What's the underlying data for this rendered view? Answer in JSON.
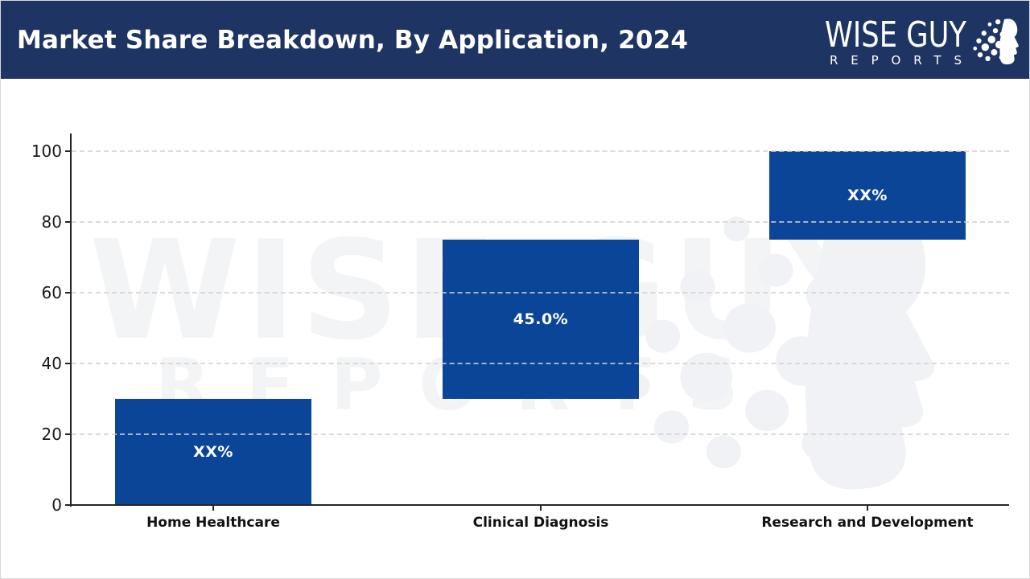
{
  "header": {
    "title": "Market Share Breakdown, By Application, 2024",
    "logo": {
      "wordmark": "WISE GUY",
      "subtitle": "REPORTS"
    }
  },
  "watermark": {
    "line1": "WISE GUY",
    "line2": "REPORTS"
  },
  "chart_data": {
    "type": "bar",
    "subtype": "floating-range-bar",
    "title": "Market Share Breakdown, By Application, 2024",
    "categories": [
      "Home Healthcare",
      "Clinical Diagnosis",
      "Research and Development"
    ],
    "bars": [
      {
        "category": "Home Healthcare",
        "start": 0,
        "end": 30,
        "label": "XX%"
      },
      {
        "category": "Clinical Diagnosis",
        "start": 30,
        "end": 75,
        "label": "45.0%"
      },
      {
        "category": "Research and Development",
        "start": 75,
        "end": 100,
        "label": "XX%"
      }
    ],
    "yticks": [
      0,
      20,
      40,
      60,
      80,
      100
    ],
    "ylim": [
      0,
      105
    ],
    "xlabel": "",
    "ylabel": "",
    "grid": "horizontal-dashed",
    "legend": "none"
  },
  "colors": {
    "header_bg": "#1e3563",
    "bar": "#0a4598",
    "bar_label": "#ffffff",
    "axis": "#262626",
    "grid": "#d2d2d2",
    "watermark": "#f3f4f6",
    "background": "#ffffff",
    "frame_border": "#d9d9d9"
  }
}
